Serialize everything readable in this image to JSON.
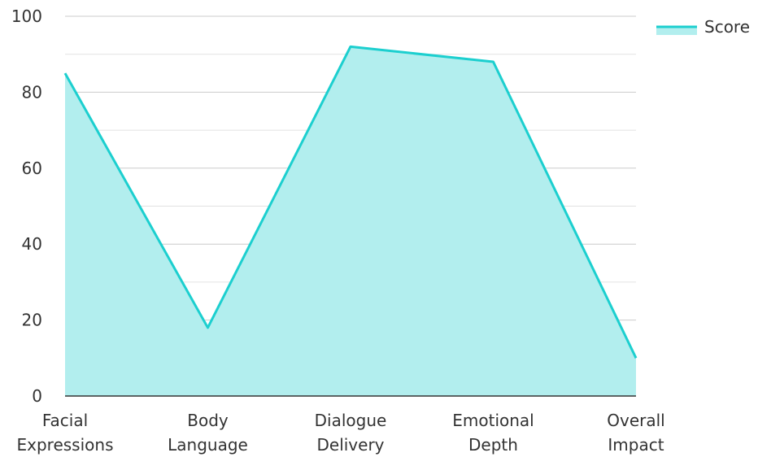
{
  "chart_data": {
    "type": "area",
    "categories": [
      "Facial Expressions",
      "Body Language",
      "Dialogue Delivery",
      "Emotional Depth",
      "Overall Impact"
    ],
    "category_lines": [
      [
        "Facial",
        "Expressions"
      ],
      [
        "Body",
        "Language"
      ],
      [
        "Dialogue",
        "Delivery"
      ],
      [
        "Emotional",
        "Depth"
      ],
      [
        "Overall",
        "Impact"
      ]
    ],
    "series": [
      {
        "name": "Score",
        "values": [
          85,
          18,
          92,
          88,
          10
        ]
      }
    ],
    "ylim": [
      0,
      100
    ],
    "yticks": [
      0,
      20,
      40,
      60,
      80,
      100
    ],
    "minor_gridlines": [
      10,
      30,
      50,
      70,
      90
    ],
    "xlabel": "",
    "ylabel": "",
    "grid": true,
    "legend_position": "top-right",
    "colors": {
      "line": "#1ccfcf",
      "fill": "#b2eeee",
      "grid": "#cccccc",
      "axis": "#333333"
    }
  }
}
